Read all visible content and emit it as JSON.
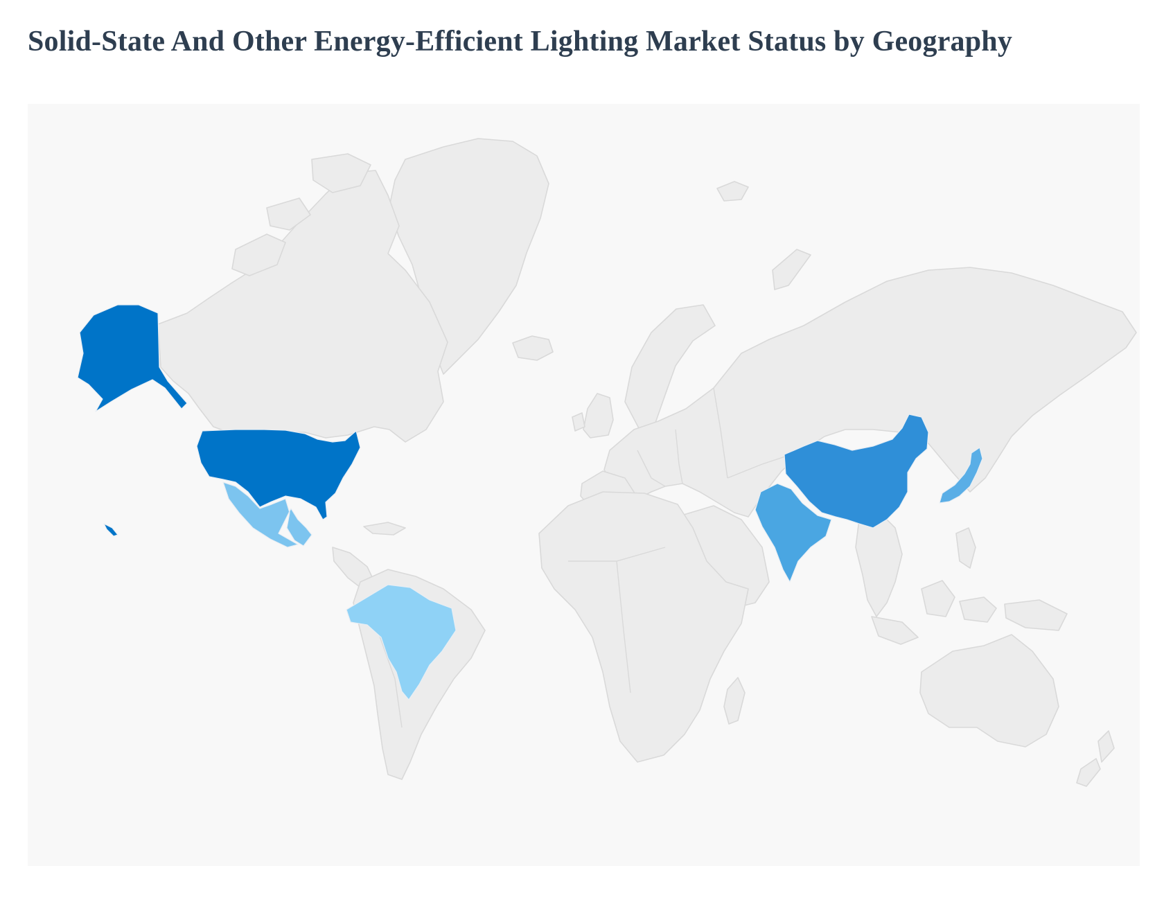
{
  "header": {
    "title": "Solid-State And Other Energy-Efficient Lighting Market Status by Geography"
  },
  "map": {
    "projection": "world",
    "background_color": "#f8f8f8",
    "land_color": "#ececec",
    "border_color": "#d9d9d9",
    "highlight_border_color": "#e8eef4",
    "highlighted_countries": [
      {
        "id": "united-states",
        "country": "United States",
        "color": "#0074c8",
        "rank": 1
      },
      {
        "id": "china",
        "country": "China",
        "color": "#2f8fd8",
        "rank": 2
      },
      {
        "id": "india",
        "country": "India",
        "color": "#4aa6e2",
        "rank": 3
      },
      {
        "id": "japan",
        "country": "Japan",
        "color": "#5aaee6",
        "rank": 3
      },
      {
        "id": "mexico",
        "country": "Mexico",
        "color": "#7cc4ef",
        "rank": 4
      },
      {
        "id": "brazil",
        "country": "Brazil",
        "color": "#8fd2f6",
        "rank": 5
      }
    ]
  }
}
